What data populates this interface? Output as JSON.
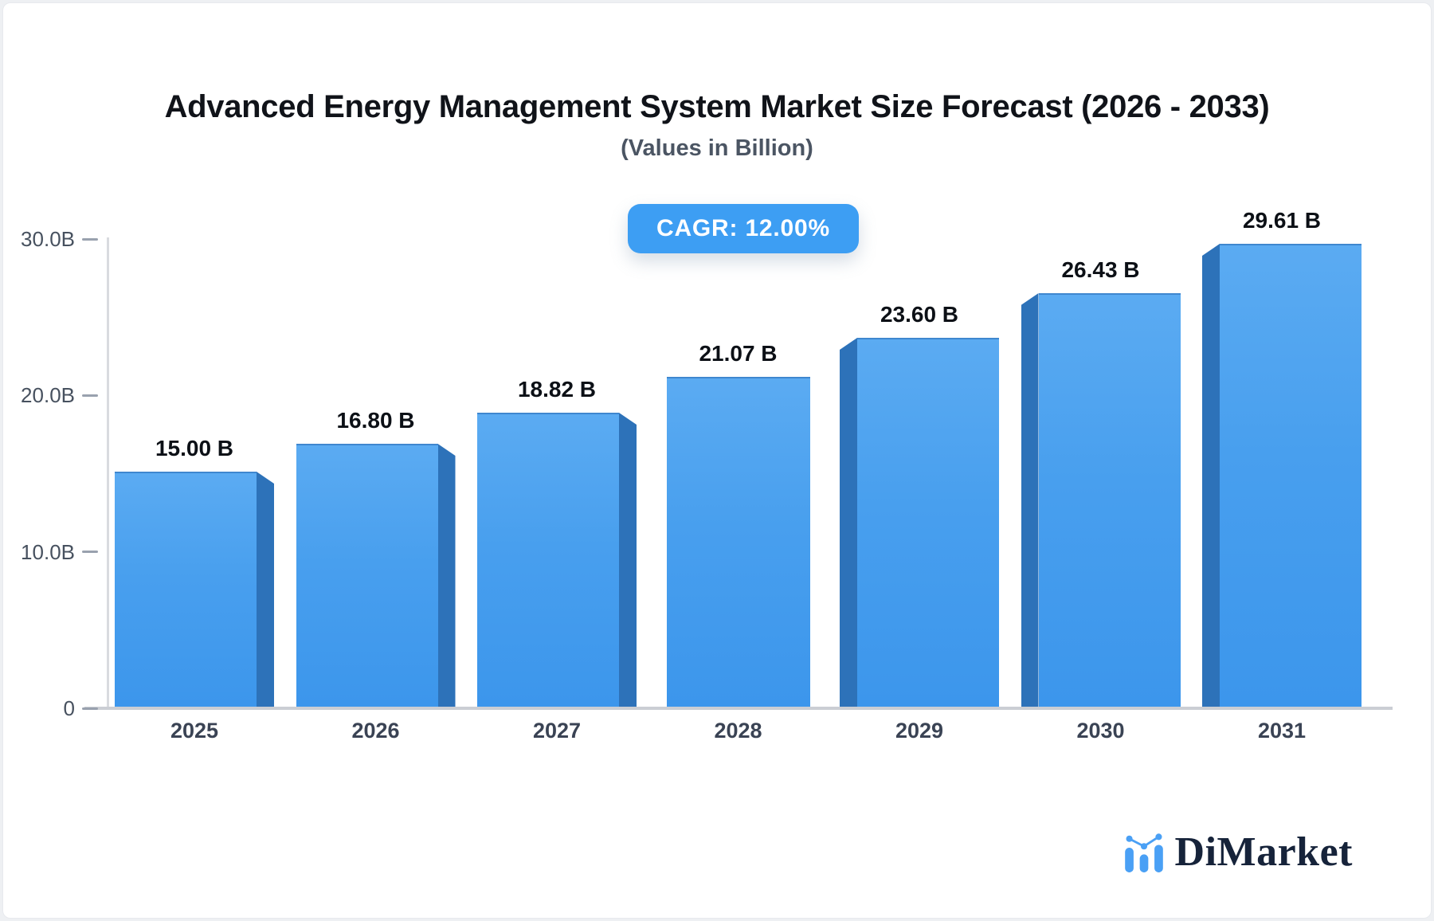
{
  "header": {
    "title": "Advanced Energy Management System Market Size Forecast (2026 - 2033)",
    "subtitle": "(Values in Billion)"
  },
  "badge": {
    "label": "CAGR: 12.00%"
  },
  "brand": {
    "name": "DiMarket",
    "icon": "mini-bar-chart-icon"
  },
  "colors": {
    "bar_face_top": "#5babf2",
    "bar_face_bottom": "#3c96ec",
    "bar_side": "#2d72b9",
    "badge_bg": "#3d9ef3",
    "axis_line": "#d9dbdf",
    "tick": "#99a1ae",
    "brand_blue": "#4aa0f5",
    "brand_navy": "#16233a"
  },
  "chart_data": {
    "type": "bar",
    "style": "3d-perspective-bars",
    "title": "Advanced Energy Management System Market Size Forecast (2026 - 2033)",
    "subtitle": "(Values in Billion)",
    "cagr": "12.00%",
    "unit": "Billion",
    "categories": [
      "2025",
      "2026",
      "2027",
      "2028",
      "2029",
      "2030",
      "2031"
    ],
    "values": [
      15.0,
      16.8,
      18.82,
      21.07,
      23.6,
      26.43,
      29.61
    ],
    "value_labels": [
      "15.00 B",
      "16.80 B",
      "18.82 B",
      "21.07 B",
      "23.60 B",
      "26.43 B",
      "29.61 B"
    ],
    "ylabel": "",
    "xlabel": "",
    "ylim": [
      0,
      30
    ],
    "yticks": [
      {
        "value": 30,
        "label": "30.0B"
      },
      {
        "value": 20,
        "label": "20.0B"
      },
      {
        "value": 10,
        "label": "10.0B"
      },
      {
        "value": 0,
        "label": "0"
      }
    ],
    "grid": false,
    "legend": "none"
  }
}
